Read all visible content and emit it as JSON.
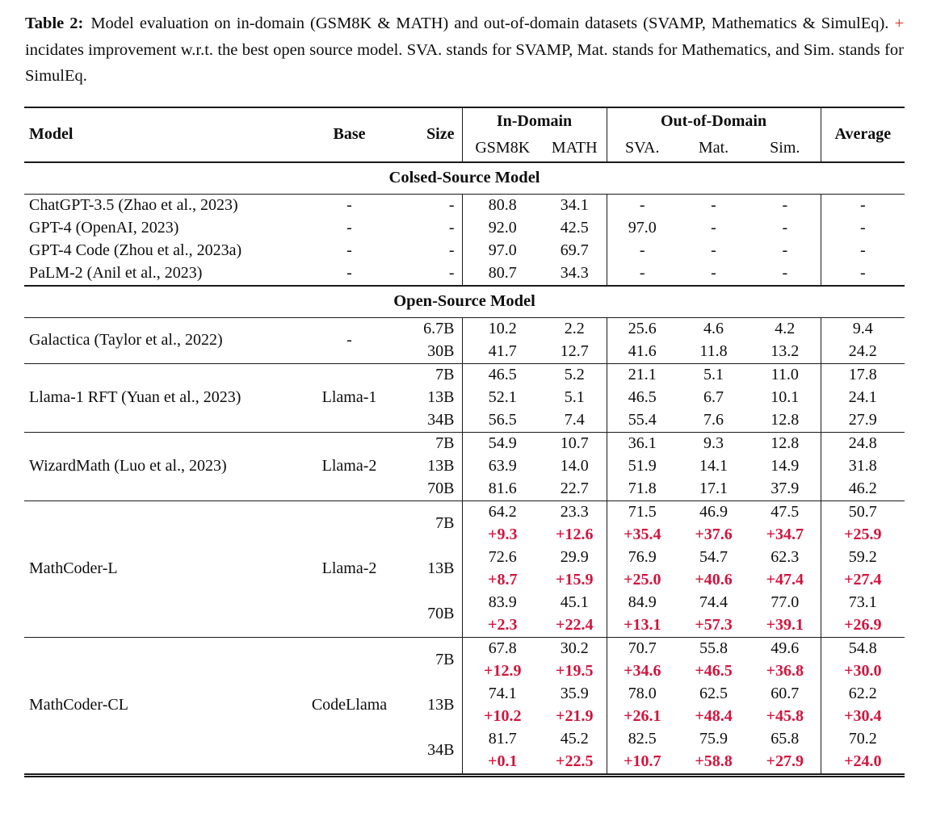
{
  "colors": {
    "text": "#0d0d0d",
    "rule": "#1a1a1a",
    "delta": "#d2143d",
    "plus": "#e3231a"
  },
  "caption": {
    "label": "Table 2:",
    "before_plus": "Model evaluation on in-domain (GSM8K & MATH) and out-of-domain datasets (SVAMP, Mathematics & SimulEq). ",
    "plus": "+",
    "after_plus": " incidates improvement w.r.t. the best open source model. SVA. stands for SVAMP, Mat. stands for Mathematics, and Sim. stands for SimulEq."
  },
  "header": {
    "model": "Model",
    "base": "Base",
    "size": "Size",
    "in_domain": "In-Domain",
    "out_of_domain": "Out-of-Domain",
    "average": "Average",
    "in_domain_cols": [
      "GSM8K",
      "MATH"
    ],
    "out_of_domain_cols": [
      "SVA.",
      "Mat.",
      "Sim."
    ]
  },
  "table": {
    "sections": [
      {
        "title": "Colsed-Source Model",
        "groups": [
          {
            "model": "ChatGPT-3.5 (Zhao et al., 2023)",
            "base": "-",
            "rows": [
              {
                "size": "-",
                "values": [
                  "80.8",
                  "34.1",
                  "-",
                  "-",
                  "-",
                  "-"
                ]
              }
            ]
          },
          {
            "model": "GPT-4 (OpenAI, 2023)",
            "base": "-",
            "rows": [
              {
                "size": "-",
                "values": [
                  "92.0",
                  "42.5",
                  "97.0",
                  "-",
                  "-",
                  "-"
                ]
              }
            ]
          },
          {
            "model": "GPT-4 Code (Zhou et al., 2023a)",
            "base": "-",
            "rows": [
              {
                "size": "-",
                "values": [
                  "97.0",
                  "69.7",
                  "-",
                  "-",
                  "-",
                  "-"
                ]
              }
            ]
          },
          {
            "model": "PaLM-2 (Anil et al., 2023)",
            "base": "-",
            "rows": [
              {
                "size": "-",
                "values": [
                  "80.7",
                  "34.3",
                  "-",
                  "-",
                  "-",
                  "-"
                ]
              }
            ]
          }
        ]
      },
      {
        "title": "Open-Source Model",
        "groups": [
          {
            "model": "Galactica (Taylor et al., 2022)",
            "base": "-",
            "rows": [
              {
                "size": "6.7B",
                "values": [
                  "10.2",
                  "2.2",
                  "25.6",
                  "4.6",
                  "4.2",
                  "9.4"
                ]
              },
              {
                "size": "30B",
                "values": [
                  "41.7",
                  "12.7",
                  "41.6",
                  "11.8",
                  "13.2",
                  "24.2"
                ]
              }
            ]
          },
          {
            "model": "Llama-1 RFT (Yuan et al., 2023)",
            "base": "Llama-1",
            "rows": [
              {
                "size": "7B",
                "values": [
                  "46.5",
                  "5.2",
                  "21.1",
                  "5.1",
                  "11.0",
                  "17.8"
                ]
              },
              {
                "size": "13B",
                "values": [
                  "52.1",
                  "5.1",
                  "46.5",
                  "6.7",
                  "10.1",
                  "24.1"
                ]
              },
              {
                "size": "34B",
                "values": [
                  "56.5",
                  "7.4",
                  "55.4",
                  "7.6",
                  "12.8",
                  "27.9"
                ]
              }
            ]
          },
          {
            "model": "WizardMath (Luo et al., 2023)",
            "base": "Llama-2",
            "rows": [
              {
                "size": "7B",
                "values": [
                  "54.9",
                  "10.7",
                  "36.1",
                  "9.3",
                  "12.8",
                  "24.8"
                ]
              },
              {
                "size": "13B",
                "values": [
                  "63.9",
                  "14.0",
                  "51.9",
                  "14.1",
                  "14.9",
                  "31.8"
                ]
              },
              {
                "size": "70B",
                "values": [
                  "81.6",
                  "22.7",
                  "71.8",
                  "17.1",
                  "37.9",
                  "46.2"
                ]
              }
            ]
          },
          {
            "model": "MathCoder-L",
            "base": "Llama-2",
            "rows": [
              {
                "size": "7B",
                "values": [
                  "64.2",
                  "23.3",
                  "71.5",
                  "46.9",
                  "47.5",
                  "50.7"
                ],
                "deltas": [
                  "+9.3",
                  "+12.6",
                  "+35.4",
                  "+37.6",
                  "+34.7",
                  "+25.9"
                ]
              },
              {
                "size": "13B",
                "values": [
                  "72.6",
                  "29.9",
                  "76.9",
                  "54.7",
                  "62.3",
                  "59.2"
                ],
                "deltas": [
                  "+8.7",
                  "+15.9",
                  "+25.0",
                  "+40.6",
                  "+47.4",
                  "+27.4"
                ]
              },
              {
                "size": "70B",
                "values": [
                  "83.9",
                  "45.1",
                  "84.9",
                  "74.4",
                  "77.0",
                  "73.1"
                ],
                "deltas": [
                  "+2.3",
                  "+22.4",
                  "+13.1",
                  "+57.3",
                  "+39.1",
                  "+26.9"
                ]
              }
            ]
          },
          {
            "model": "MathCoder-CL",
            "base": "CodeLlama",
            "rows": [
              {
                "size": "7B",
                "values": [
                  "67.8",
                  "30.2",
                  "70.7",
                  "55.8",
                  "49.6",
                  "54.8"
                ],
                "deltas": [
                  "+12.9",
                  "+19.5",
                  "+34.6",
                  "+46.5",
                  "+36.8",
                  "+30.0"
                ]
              },
              {
                "size": "13B",
                "values": [
                  "74.1",
                  "35.9",
                  "78.0",
                  "62.5",
                  "60.7",
                  "62.2"
                ],
                "deltas": [
                  "+10.2",
                  "+21.9",
                  "+26.1",
                  "+48.4",
                  "+45.8",
                  "+30.4"
                ]
              },
              {
                "size": "34B",
                "values": [
                  "81.7",
                  "45.2",
                  "82.5",
                  "75.9",
                  "65.8",
                  "70.2"
                ],
                "deltas": [
                  "+0.1",
                  "+22.5",
                  "+10.7",
                  "+58.8",
                  "+27.9",
                  "+24.0"
                ]
              }
            ]
          }
        ]
      }
    ]
  }
}
